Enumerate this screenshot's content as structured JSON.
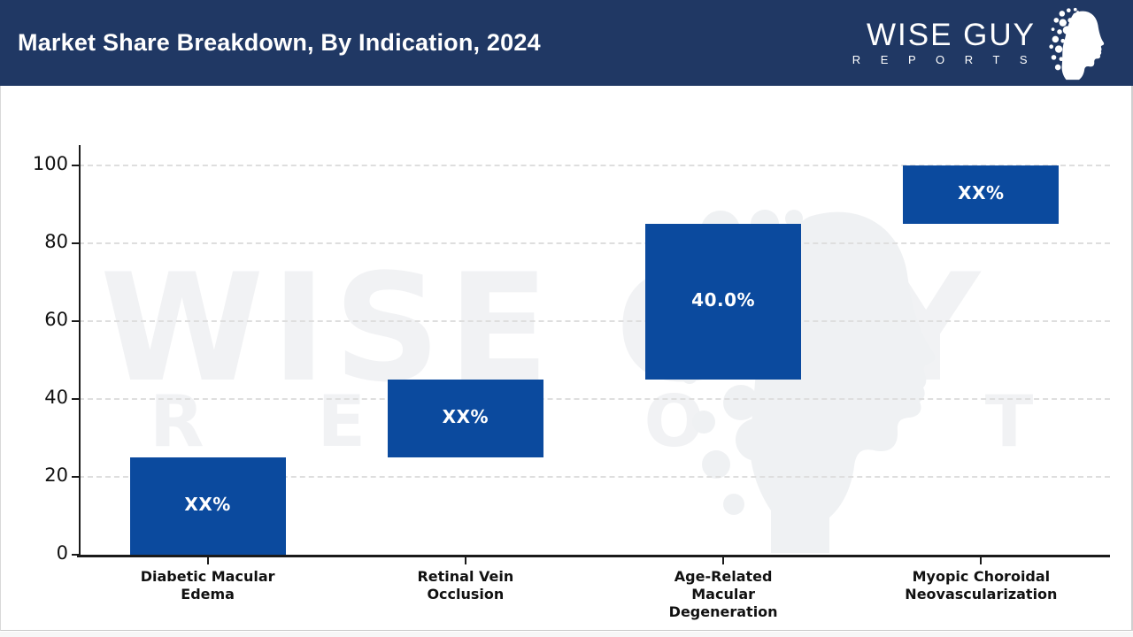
{
  "header": {
    "title": "Market Share Breakdown, By Indication, 2024",
    "logo": {
      "line1": "WISE GUY",
      "line2": "R E P O R T S"
    }
  },
  "watermark": {
    "line1": "WISE GUY",
    "line2": "R E P O R T S"
  },
  "chart_data": {
    "type": "bar",
    "variant": "floating-waterfall",
    "title": "Market Share Breakdown, By Indication, 2024",
    "categories": [
      "Diabetic Macular\nEdema",
      "Retinal Vein\nOcclusion",
      "Age-Related\nMacular\nDegeneration",
      "Myopic Choroidal\nNeovascularization"
    ],
    "segments": [
      {
        "start": 0,
        "end": 25,
        "label": "XX%"
      },
      {
        "start": 25,
        "end": 45,
        "label": "XX%"
      },
      {
        "start": 45,
        "end": 85,
        "label": "40.0%"
      },
      {
        "start": 85,
        "end": 100,
        "label": "XX%"
      }
    ],
    "yticks": [
      0,
      20,
      40,
      60,
      80,
      100
    ],
    "ylim": [
      0,
      100
    ],
    "xlabel": "",
    "ylabel": "",
    "grid": "horizontal-dashed",
    "legend": "none"
  },
  "colors": {
    "header_bg": "#203864",
    "bar": "#0b4a9e",
    "bar_label": "#ffffff",
    "gridline": "#dedede",
    "axis": "#1a1a1a",
    "watermark": "#f1f2f4"
  }
}
